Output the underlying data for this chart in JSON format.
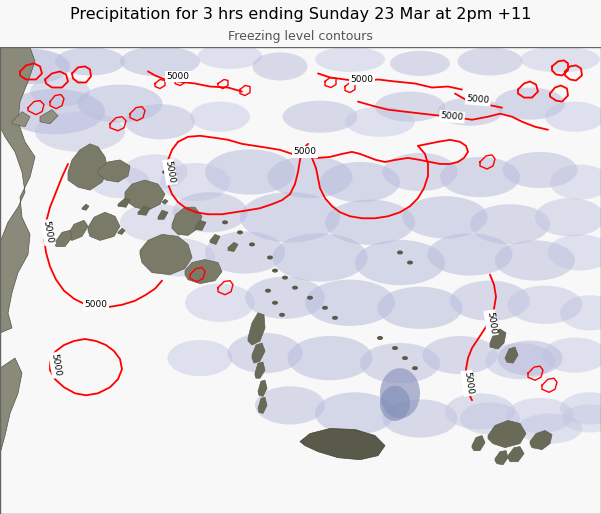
{
  "title": "Precipitation for 3 hrs ending Sunday 23 Mar at 2pm +11",
  "subtitle": "Freezing level contours",
  "title_fontsize": 11.5,
  "subtitle_fontsize": 9,
  "fig_width": 6.01,
  "fig_height": 5.14,
  "dpi": 100,
  "ocean_color": "#dde0f0",
  "precip_color": "#b8bcdc",
  "precip_color2": "#c0c4e0",
  "land_color": "#8a8a7a",
  "land_edge": "#606050",
  "header_bg": "#f8f8f8",
  "contour_color": "red",
  "label_color": "black",
  "label_bg": "white"
}
